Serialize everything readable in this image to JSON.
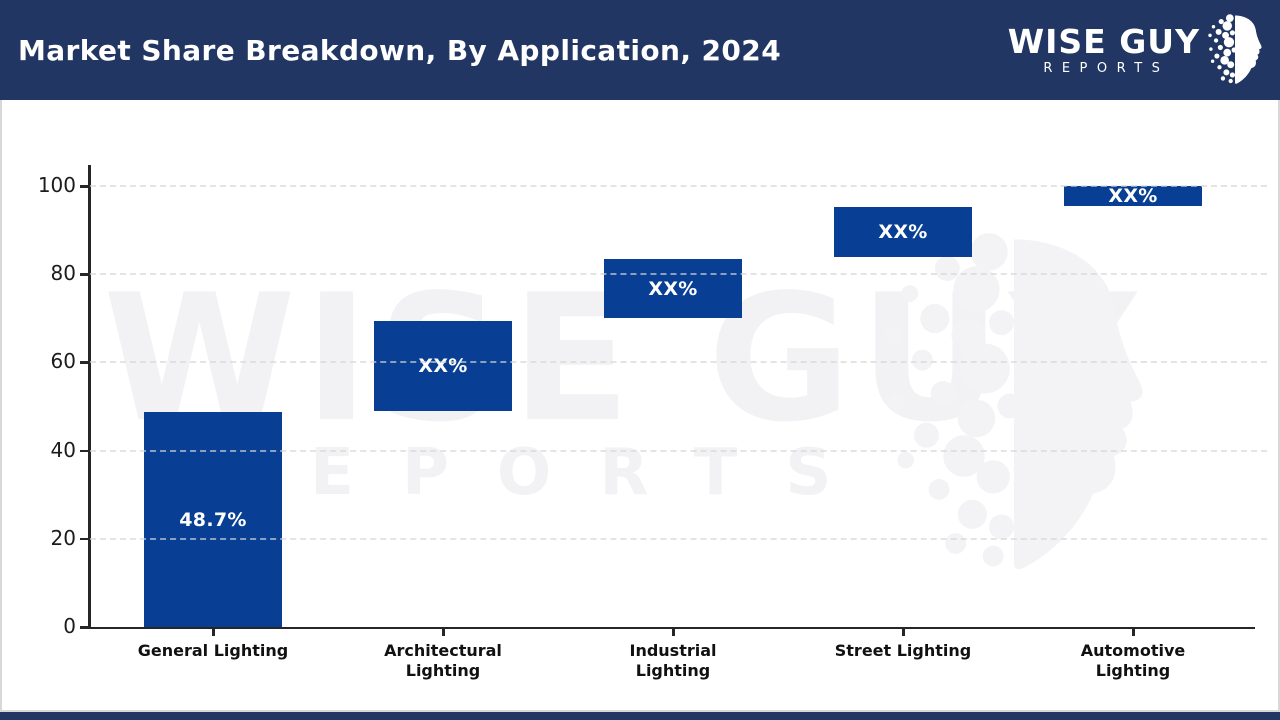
{
  "header": {
    "title": "Market Share Breakdown, By Application, 2024",
    "bg_color": "#213663",
    "logo": {
      "name": "WISE GUY",
      "subtitle": "REPORTS"
    }
  },
  "watermark": {
    "line1": "WISE GUY",
    "line2": "REPORTS"
  },
  "footer": {
    "bar_color": "#213663"
  },
  "chart_data": {
    "type": "bar",
    "subtype": "waterfall",
    "title": "Market Share Breakdown, By Application, 2024",
    "categories": [
      "General Lighting",
      "Architectural Lighting",
      "Industrial Lighting",
      "Street Lighting",
      "Automotive Lighting"
    ],
    "category_lines": [
      [
        "General Lighting"
      ],
      [
        "Architectural",
        "Lighting"
      ],
      [
        "Industrial",
        "Lighting"
      ],
      [
        "Street Lighting"
      ],
      [
        "Automotive",
        "Lighting"
      ]
    ],
    "segments": [
      {
        "category": "General Lighting",
        "start": 0,
        "end": 48.7,
        "label": "48.7%"
      },
      {
        "category": "Architectural Lighting",
        "start": 49.0,
        "end": 69.5,
        "label": "XX%"
      },
      {
        "category": "Industrial Lighting",
        "start": 70.0,
        "end": 83.5,
        "label": "XX%"
      },
      {
        "category": "Street Lighting",
        "start": 84.0,
        "end": 95.2,
        "label": "XX%"
      },
      {
        "category": "Automotive Lighting",
        "start": 95.4,
        "end": 100.0,
        "label": "XX%"
      }
    ],
    "xlabel": "",
    "ylabel": "",
    "ylim": [
      0,
      105
    ],
    "yticks": [
      0,
      20,
      40,
      60,
      80,
      100
    ],
    "grid": "horizontal-dashed-over-bars",
    "legend": "none",
    "bar_color": "#083f94",
    "bar_label_color": "#ffffff",
    "axis_color": "#262626",
    "gridline_color": "#d6d6d6"
  }
}
